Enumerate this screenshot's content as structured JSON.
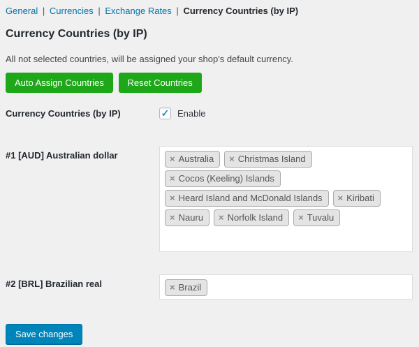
{
  "breadcrumb": {
    "separator": "|",
    "links": [
      {
        "label": "General"
      },
      {
        "label": "Currencies"
      },
      {
        "label": "Exchange Rates"
      }
    ],
    "current": "Currency Countries (by IP)"
  },
  "header": {
    "title": "Currency Countries (by IP)",
    "description": "All not selected countries, will be assigned your shop's default currency."
  },
  "toolbar": {
    "auto_assign_label": "Auto Assign Countries",
    "reset_label": "Reset Countries"
  },
  "form": {
    "enable_row": {
      "label": "Currency Countries (by IP)",
      "checkbox_label": "Enable",
      "checked": true,
      "check_glyph": "✓"
    },
    "remove_glyph": "×",
    "currency_rows": [
      {
        "label": "#1 [AUD] Australian dollar",
        "countries": [
          "Australia",
          "Christmas Island",
          "Cocos (Keeling) Islands",
          "Heard Island and McDonald Islands",
          "Kiribati",
          "Nauru",
          "Norfolk Island",
          "Tuvalu"
        ]
      },
      {
        "label": "#2 [BRL] Brazilian real",
        "countries": [
          "Brazil"
        ]
      }
    ]
  },
  "footer": {
    "save_label": "Save changes"
  },
  "colors": {
    "page_bg": "#f0f0f1",
    "link": "#0073aa",
    "heading": "#23282d",
    "button_green": "#1fa71a",
    "button_blue": "#0085ba",
    "checkbox_check": "#1e8cbe",
    "tag_bg": "#e4e4e4",
    "tag_border": "#aaaaaa",
    "box_border": "#dddddd"
  }
}
